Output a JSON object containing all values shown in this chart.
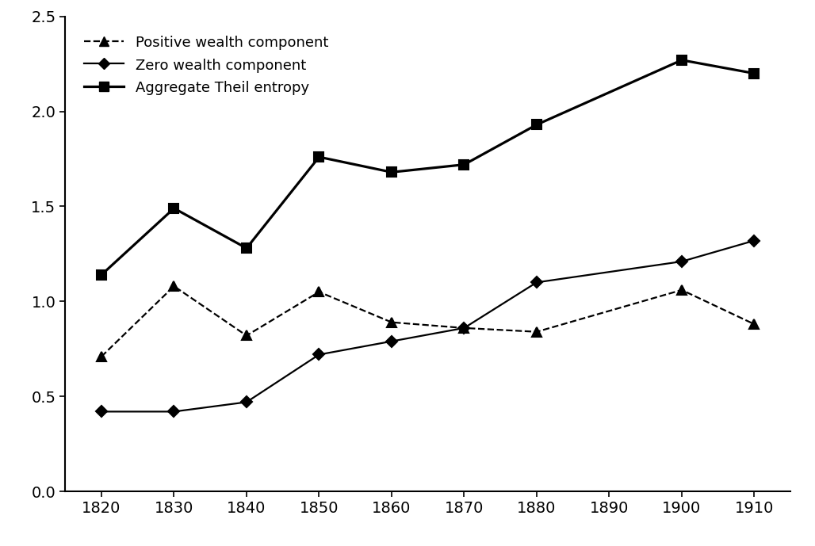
{
  "years": [
    1820,
    1830,
    1840,
    1850,
    1860,
    1870,
    1880,
    1900,
    1910
  ],
  "positive_wealth": [
    0.71,
    1.08,
    0.82,
    1.05,
    0.89,
    0.86,
    0.84,
    1.06,
    0.88
  ],
  "zero_wealth": [
    0.42,
    0.42,
    0.47,
    0.72,
    0.79,
    0.86,
    1.1,
    1.21,
    1.32
  ],
  "aggregate_theil": [
    1.14,
    1.49,
    1.28,
    1.76,
    1.68,
    1.72,
    1.93,
    2.27,
    2.2
  ],
  "xlim": [
    1815,
    1915
  ],
  "ylim": [
    0.0,
    2.5
  ],
  "xticks": [
    1820,
    1830,
    1840,
    1850,
    1860,
    1870,
    1880,
    1890,
    1900,
    1910
  ],
  "yticks": [
    0.0,
    0.5,
    1.0,
    1.5,
    2.0,
    2.5
  ],
  "line_color": "#000000",
  "legend_labels": [
    "Positive wealth component",
    "Zero wealth component",
    "Aggregate Theil entropy"
  ],
  "background_color": "#ffffff",
  "figsize": [
    10.28,
    6.89
  ],
  "dpi": 100
}
